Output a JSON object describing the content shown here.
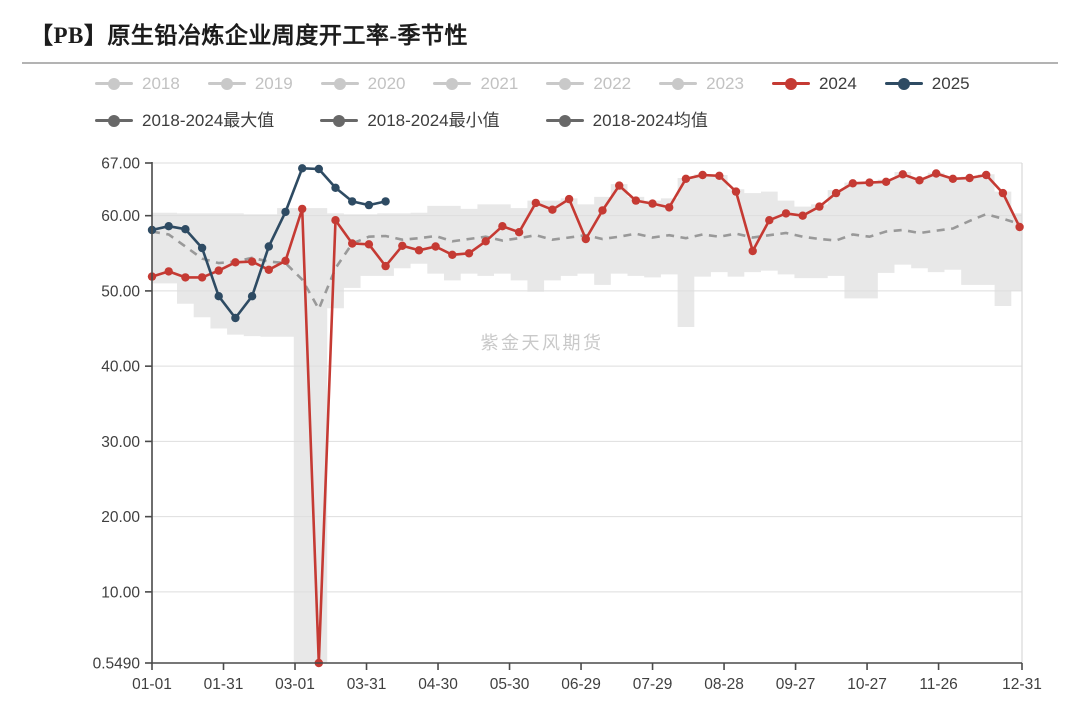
{
  "title": "【PB】原生铅冶炼企业周度开工率-季节性",
  "watermark": "紫金天风期货",
  "colors": {
    "accent_red": "#c53a33",
    "accent_blue": "#2e4b63",
    "band_fill": "#e8e8e8",
    "mean_dash": "#999999",
    "muted_legend": "#c9c9c9",
    "muted_legend_text": "#c2c2c2",
    "dark_legend": "#686868",
    "legend_text": "#3d3d3d",
    "axis_line": "#4a4a4a",
    "tick_text": "#3f3f3f",
    "grid_line": "#dedede",
    "watermark_text": "#c9c9c9"
  },
  "legend": {
    "row1": [
      {
        "label": "2018",
        "color": "#c9c9c9",
        "text_color": "#c2c2c2"
      },
      {
        "label": "2019",
        "color": "#c9c9c9",
        "text_color": "#c2c2c2"
      },
      {
        "label": "2020",
        "color": "#c9c9c9",
        "text_color": "#c2c2c2"
      },
      {
        "label": "2021",
        "color": "#c9c9c9",
        "text_color": "#c2c2c2"
      },
      {
        "label": "2022",
        "color": "#c9c9c9",
        "text_color": "#c2c2c2"
      },
      {
        "label": "2023",
        "color": "#c9c9c9",
        "text_color": "#c2c2c2"
      },
      {
        "label": "2024",
        "color": "#c53a33",
        "text_color": "#3d3d3d"
      },
      {
        "label": "2025",
        "color": "#2e4b63",
        "text_color": "#3d3d3d"
      }
    ],
    "row2": [
      {
        "label": "2018-2024最大值",
        "color": "#686868",
        "text_color": "#3d3d3d"
      },
      {
        "label": "2018-2024最小值",
        "color": "#686868",
        "text_color": "#3d3d3d"
      },
      {
        "label": "2018-2024均值",
        "color": "#686868",
        "text_color": "#3d3d3d"
      }
    ]
  },
  "chart_data": {
    "type": "line",
    "title": "【PB】原生铅冶炼企业周度开工率-季节性",
    "xlabel": "",
    "ylabel": "",
    "ylim": [
      0.549,
      67
    ],
    "x_total_days": 365,
    "week_step_days": 7,
    "grid": true,
    "legend_position": "top",
    "y_ticks": [
      {
        "label": "0.5490",
        "value": 0.549
      },
      {
        "label": "10.00",
        "value": 10
      },
      {
        "label": "20.00",
        "value": 20
      },
      {
        "label": "30.00",
        "value": 30
      },
      {
        "label": "40.00",
        "value": 40
      },
      {
        "label": "50.00",
        "value": 50
      },
      {
        "label": "60.00",
        "value": 60
      },
      {
        "label": "67.00",
        "value": 67
      }
    ],
    "x_ticks": [
      {
        "label": "01-01",
        "day": 0
      },
      {
        "label": "01-31",
        "day": 30
      },
      {
        "label": "03-01",
        "day": 60
      },
      {
        "label": "03-31",
        "day": 90
      },
      {
        "label": "04-30",
        "day": 120
      },
      {
        "label": "05-30",
        "day": 150
      },
      {
        "label": "06-29",
        "day": 180
      },
      {
        "label": "07-29",
        "day": 210
      },
      {
        "label": "08-28",
        "day": 240
      },
      {
        "label": "09-27",
        "day": 270
      },
      {
        "label": "10-27",
        "day": 300
      },
      {
        "label": "11-26",
        "day": 330
      },
      {
        "label": "12-31",
        "day": 365
      }
    ],
    "band": {
      "name_max": "2018-2024最大值",
      "name_min": "2018-2024最小值",
      "color": "#e8e8e8",
      "max": [
        60.4,
        60.4,
        60.3,
        60.3,
        60.3,
        60.3,
        60.2,
        60.2,
        61.0,
        61.0,
        61.0,
        60.3,
        60.2,
        60.2,
        60.3,
        60.3,
        60.4,
        61.3,
        61.3,
        60.9,
        61.5,
        61.5,
        61.0,
        62.0,
        62.0,
        62.3,
        61.5,
        62.5,
        64.2,
        62.5,
        62.0,
        62.3,
        65.0,
        65.5,
        65.4,
        63.5,
        63.0,
        63.2,
        62.0,
        61.2,
        61.5,
        63.4,
        64.4,
        64.5,
        64.8,
        65.8,
        65.0,
        65.7,
        65.1,
        65.2,
        65.5,
        63.2,
        60.3
      ],
      "min": [
        51.0,
        51.0,
        48.3,
        46.5,
        45.0,
        44.2,
        44.0,
        43.9,
        43.9,
        0.549,
        0.549,
        47.7,
        50.4,
        52.0,
        52.0,
        53.0,
        53.6,
        52.3,
        51.4,
        52.3,
        52.0,
        52.3,
        51.4,
        49.9,
        51.4,
        52.0,
        52.3,
        50.8,
        52.3,
        52.0,
        51.8,
        52.2,
        45.2,
        51.9,
        52.5,
        51.9,
        52.5,
        52.7,
        52.2,
        51.7,
        51.7,
        52.0,
        49.0,
        49.0,
        52.4,
        53.5,
        53.0,
        52.5,
        52.8,
        50.8,
        50.8,
        48.0,
        50.0
      ]
    },
    "mean": {
      "name": "2018-2024均值",
      "color": "#999999",
      "style": "dashed",
      "values": [
        57.9,
        57.5,
        55.9,
        54.3,
        53.7,
        53.9,
        54.4,
        53.9,
        53.7,
        51.5,
        47.6,
        53.0,
        56.3,
        57.2,
        57.3,
        56.8,
        57.0,
        57.3,
        56.6,
        56.9,
        57.2,
        56.7,
        57.0,
        57.4,
        56.8,
        57.1,
        57.4,
        56.9,
        57.2,
        57.6,
        57.1,
        57.4,
        57.0,
        57.5,
        57.2,
        57.6,
        57.1,
        57.4,
        57.7,
        57.2,
        56.9,
        56.7,
        57.5,
        57.2,
        57.9,
        58.1,
        57.7,
        58.0,
        58.3,
        59.3,
        60.2,
        59.6,
        58.9
      ]
    },
    "series": [
      {
        "name": "2024",
        "color": "#c53a33",
        "values": [
          51.9,
          52.6,
          51.8,
          51.8,
          52.7,
          53.8,
          53.9,
          52.8,
          54.0,
          60.9,
          0.549,
          59.4,
          56.3,
          56.2,
          53.3,
          56.0,
          55.4,
          55.9,
          54.8,
          55.0,
          56.6,
          58.6,
          57.8,
          61.7,
          60.8,
          62.2,
          56.9,
          60.7,
          64.0,
          62.0,
          61.6,
          61.1,
          64.9,
          65.4,
          65.3,
          63.2,
          55.3,
          59.4,
          60.3,
          60.0,
          61.2,
          63.0,
          64.3,
          64.4,
          64.5,
          65.5,
          64.7,
          65.6,
          64.9,
          65.0,
          65.4,
          63.0,
          58.5
        ]
      },
      {
        "name": "2025",
        "color": "#2e4b63",
        "values": [
          58.1,
          58.6,
          58.2,
          55.7,
          49.3,
          46.4,
          49.3,
          55.9,
          60.5,
          66.3,
          66.2,
          63.7,
          61.9,
          61.4,
          61.9
        ]
      }
    ]
  }
}
